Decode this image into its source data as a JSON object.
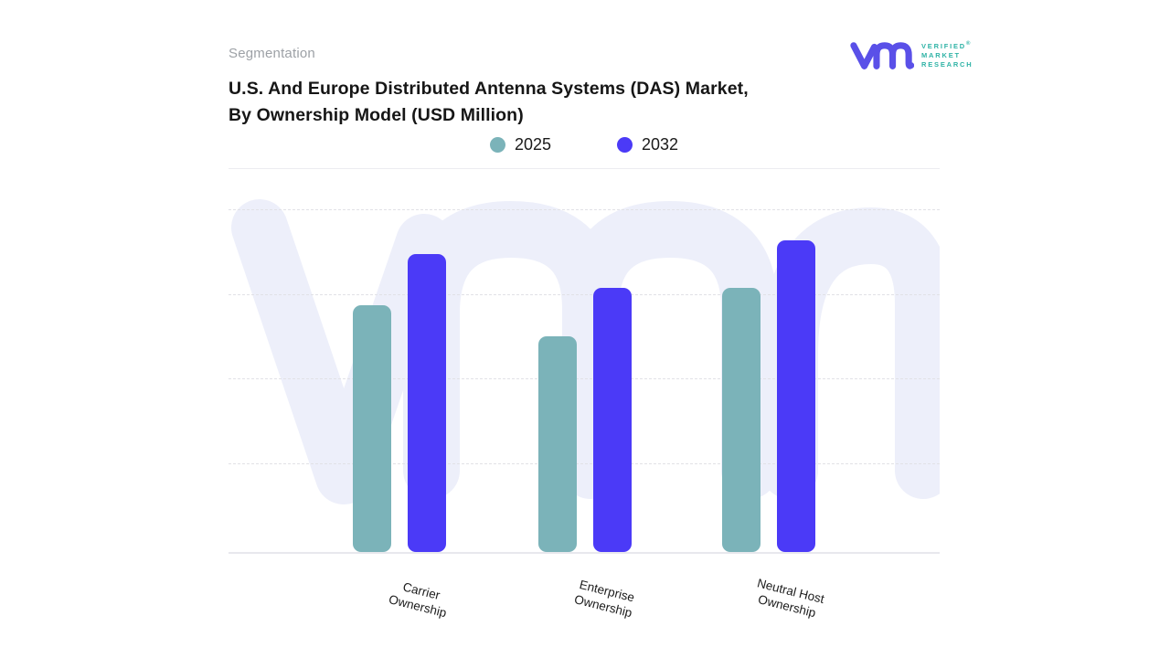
{
  "header": {
    "eyebrow": "Segmentation",
    "title_line1": "U.S. And Europe Distributed Antenna Systems (DAS) Market,",
    "title_line2": "By Ownership Model (USD Million)"
  },
  "logo": {
    "line1": "VERIFIED",
    "registered": "®",
    "line2": "MARKET",
    "line3": "RESEARCH",
    "monogram_color": "#5a50e8",
    "text_color": "#2fb3a6"
  },
  "chart_data": {
    "type": "bar",
    "title": "U.S. And Europe Distributed Antenna Systems (DAS) Market, By Ownership Model (USD Million)",
    "categories": [
      "Carrier Ownership",
      "Enterprise Ownership",
      "Neutral Host Ownership"
    ],
    "category_lines": [
      [
        "Carrier",
        "Ownership"
      ],
      [
        "Enterprise",
        "Ownership"
      ],
      [
        "Neutral Host",
        "Ownership"
      ]
    ],
    "series": [
      {
        "name": "2025",
        "color": "#7bb3b9",
        "values": [
          72,
          63,
          77
        ]
      },
      {
        "name": "2032",
        "color": "#4b3af7",
        "values": [
          87,
          77,
          91
        ]
      }
    ],
    "xlabel": "",
    "ylabel": "",
    "ylim": [
      0,
      100
    ],
    "value_scale": "relative percent of plot height (no numeric axis labels shown)",
    "value_axis_visible": false,
    "grid": "horizontal-dashed",
    "legend_position": "top-center",
    "watermark": "vmr-monogram",
    "watermark_color": "#edeffa"
  },
  "colors": {
    "background": "#ffffff",
    "bar_2025": "#7bb3b9",
    "bar_2032": "#4b3af7",
    "gridline": "#e1e1e6",
    "baseline": "#e8e8ed",
    "title_text": "#161616",
    "eyebrow_text": "#9da1a6"
  }
}
